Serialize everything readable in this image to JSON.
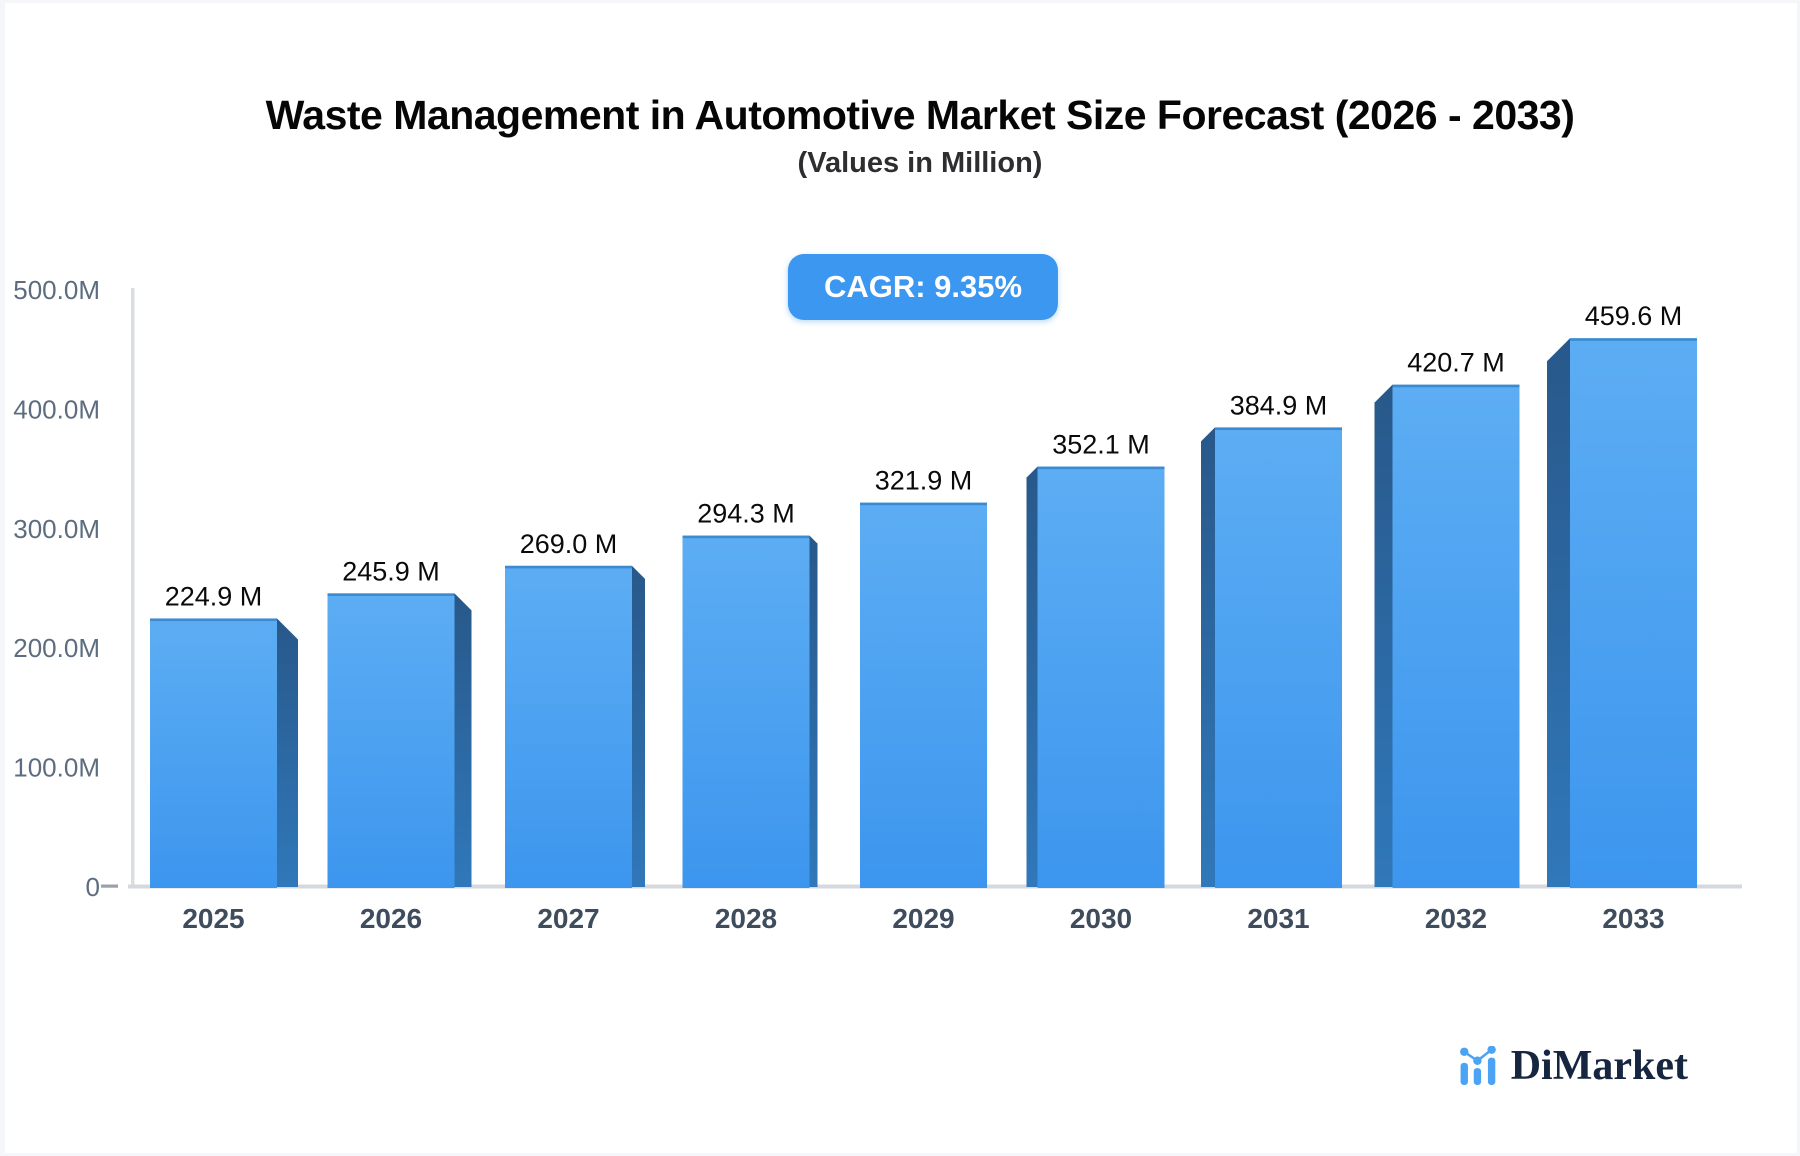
{
  "page": {
    "title": "Waste Management in Automotive Market Size Forecast (2026 - 2033)",
    "subtitle": "(Values in Million)",
    "cagr_badge": "CAGR: 9.35%"
  },
  "chart_data": {
    "type": "bar",
    "title": "Waste Management in Automotive Market Size Forecast (2026 - 2033)",
    "subtitle": "(Values in Million)",
    "cagr": "9.35%",
    "unit": "Million",
    "categories": [
      "2025",
      "2026",
      "2027",
      "2028",
      "2029",
      "2030",
      "2031",
      "2032",
      "2033"
    ],
    "values": [
      224.9,
      245.9,
      269.0,
      294.3,
      321.9,
      352.1,
      384.9,
      420.7,
      459.6
    ],
    "value_labels": [
      "224.9 M",
      "245.9 M",
      "269.0 M",
      "294.3 M",
      "321.9 M",
      "352.1 M",
      "384.9 M",
      "420.7 M",
      "459.6 M"
    ],
    "y_ticks": [
      {
        "label": "0",
        "value": 0
      },
      {
        "label": "100.0M",
        "value": 100
      },
      {
        "label": "200.0M",
        "value": 200
      },
      {
        "label": "300.0M",
        "value": 300
      },
      {
        "label": "400.0M",
        "value": 400
      },
      {
        "label": "500.0M",
        "value": 500
      }
    ],
    "ylim": [
      0,
      500
    ],
    "grid": false,
    "legend": false,
    "colors": {
      "bar_front_top": "#5cadf3",
      "bar_front_bottom": "#3d96ee",
      "bar_top_edge": "#3b8ad2",
      "bar_side_top": "#28588a",
      "bar_side_bottom": "#3078ba",
      "badge_bg": "#3b97ef",
      "axis_line": "#dadde2",
      "baseline": "#d5d8dd",
      "zero_tick": "#99a1ac",
      "ytick_label": "#5d6c7e",
      "year_label": "#3e4c5e",
      "value_label": "#0a0a0a",
      "logo_blue": "#4aa3f5",
      "logo_navy": "#162540"
    }
  },
  "footer": {
    "logo_text": "DiMarket"
  }
}
